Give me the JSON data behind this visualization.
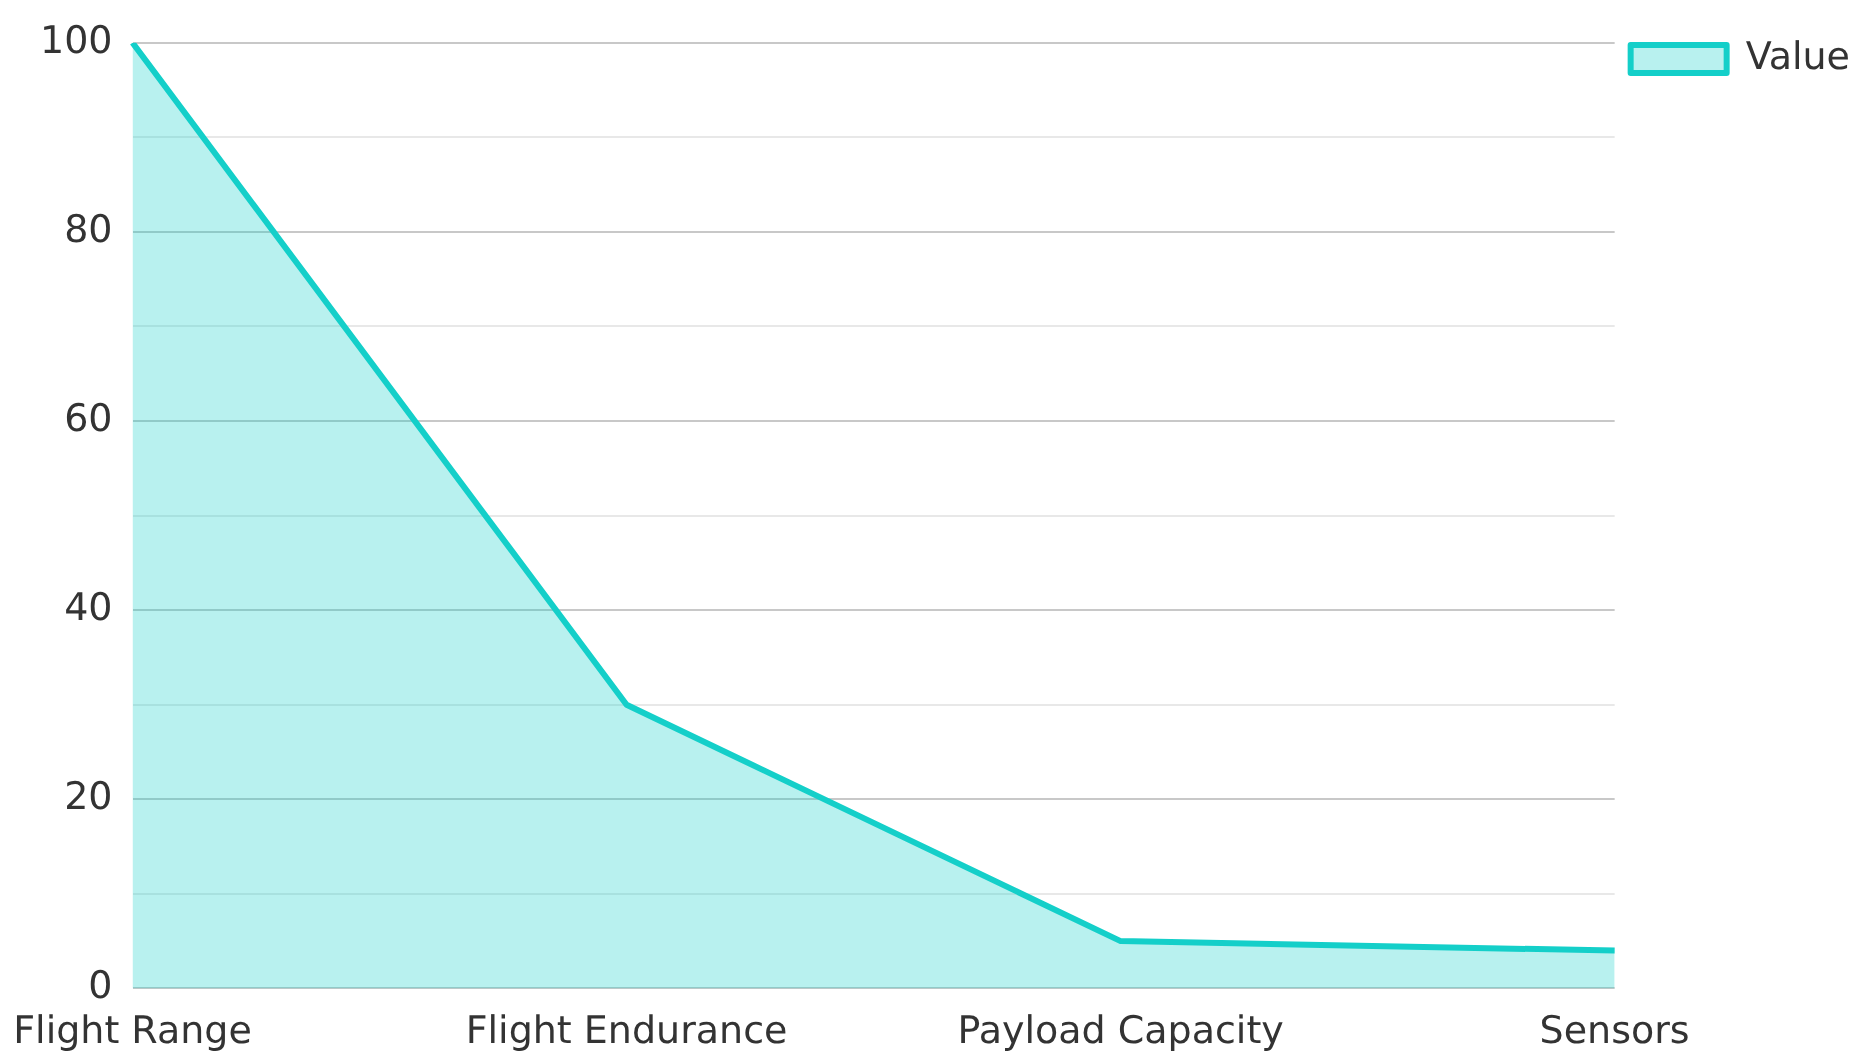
{
  "chart_data": {
    "type": "area",
    "categories": [
      "Flight Range",
      "Flight Endurance",
      "Payload Capacity",
      "Sensors"
    ],
    "series": [
      {
        "name": "Value",
        "color": "#14cfc9",
        "values": [
          100,
          30,
          5,
          4
        ]
      }
    ],
    "ylim": [
      0,
      100
    ],
    "yticks": [
      0,
      {
        "value": 10,
        "label": null
      },
      20,
      {
        "value": 30,
        "label": null
      },
      40,
      {
        "value": 50,
        "label": null
      },
      60,
      {
        "value": 70,
        "label": null
      },
      80,
      {
        "value": 90,
        "label": null
      },
      100
    ],
    "grid": "y",
    "legend": "top right"
  }
}
